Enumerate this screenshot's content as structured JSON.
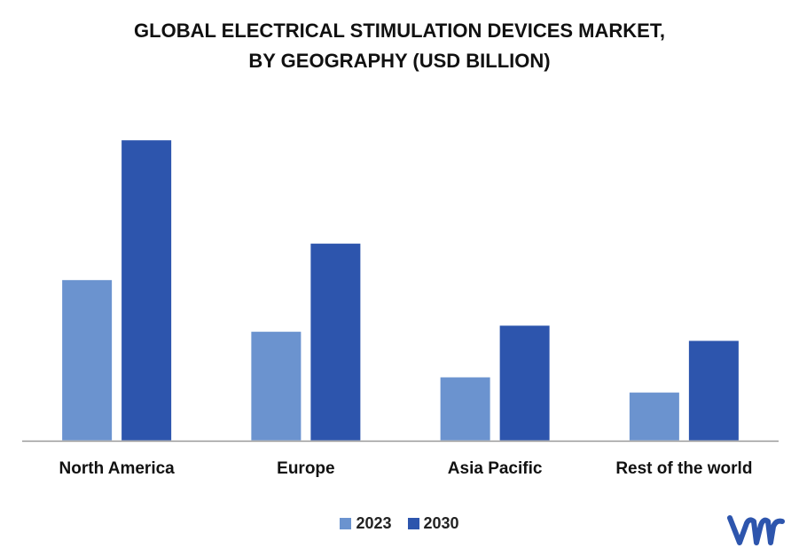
{
  "chart_data": {
    "type": "bar",
    "title_lines": [
      "GLOBAL ELECTRICAL STIMULATION DEVICES MARKET,",
      "BY GEOGRAPHY (USD BILLION)"
    ],
    "categories": [
      "North America",
      "Europe",
      "Asia Pacific",
      "Rest of the world"
    ],
    "series": [
      {
        "name": "2023",
        "color": "#6b93cf",
        "values": [
          5.3,
          3.6,
          2.1,
          1.6
        ]
      },
      {
        "name": "2030",
        "color": "#2d55ad",
        "values": [
          9.9,
          6.5,
          3.8,
          3.3
        ]
      }
    ],
    "ylim": [
      0,
      11
    ],
    "grid": false,
    "legend_position": "bottom"
  },
  "brand": {
    "logo_name": "vmr-logo",
    "logo_color": "#2d55ad"
  }
}
